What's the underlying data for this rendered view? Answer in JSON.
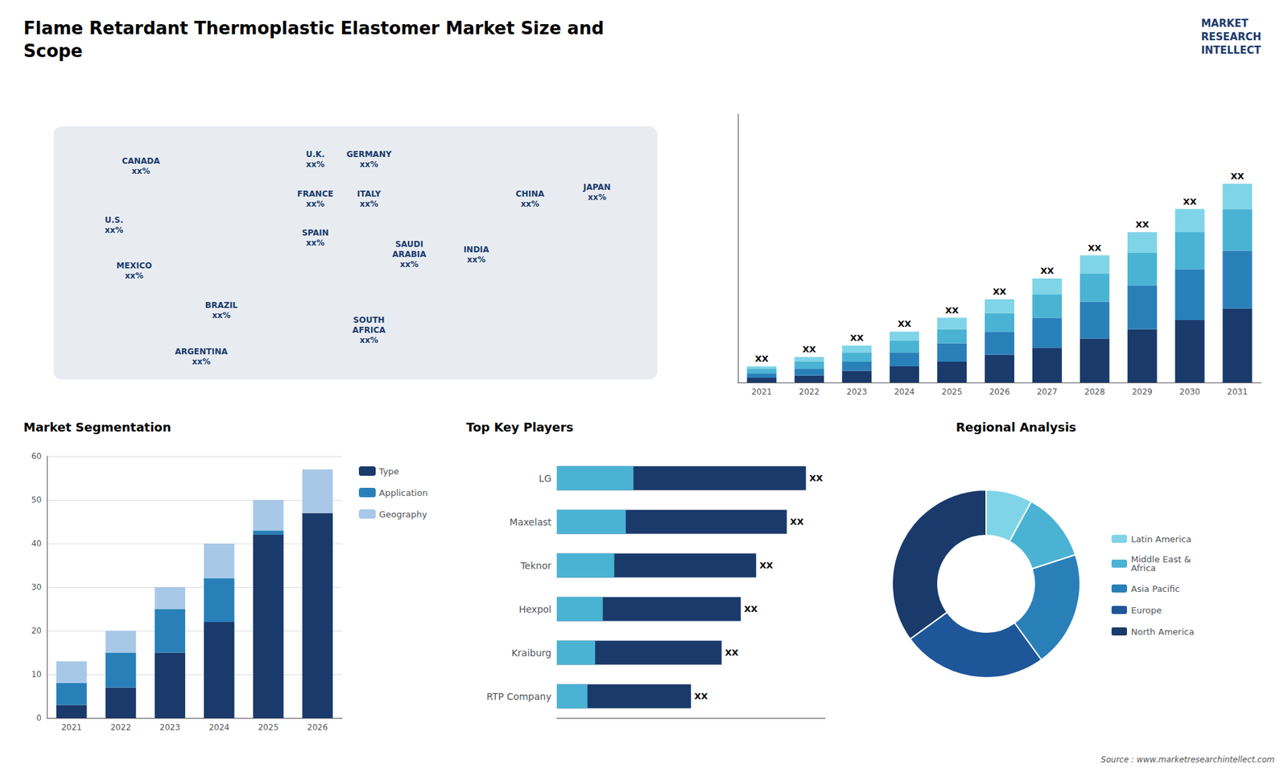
{
  "chart_data": [
    {
      "type": "bar",
      "title": "Flame Retardant Thermoplastic Elastomer Market Size and\nScope",
      "categories": [
        2021,
        2022,
        2023,
        2024,
        2025,
        2026,
        2027,
        2028,
        2029,
        2030,
        2031
      ],
      "series": [
        {
          "color": "#1a3a6b",
          "values": [
            2,
            3,
            5,
            7,
            9,
            12,
            15,
            19,
            23,
            27,
            32
          ]
        },
        {
          "color": "#2980b9",
          "values": [
            2,
            3,
            4,
            6,
            8,
            10,
            13,
            16,
            19,
            22,
            25
          ]
        },
        {
          "color": "#4ab3d4",
          "values": [
            2,
            3,
            4,
            5,
            6,
            8,
            10,
            12,
            14,
            16,
            18
          ]
        },
        {
          "color": "#7fd4e8",
          "values": [
            1,
            2,
            3,
            4,
            5,
            6,
            7,
            8,
            9,
            10,
            11
          ],
          "data_labels": true,
          "value_labels": [
            "XX",
            "XX",
            "XX",
            "XX",
            "XX",
            "XX",
            "XX",
            "XX",
            "XX",
            "XX",
            "XX"
          ]
        }
      ],
      "stacked": true,
      "ylim": [
        0,
        116.1
      ],
      "tick_labels": "x",
      "grid": false,
      "annotations": [
        "CANADA\nxx%",
        "U.S.\nxx%",
        "MEXICO\nxx%",
        "BRAZIL\nxx%",
        "ARGENTINA\nxx%",
        "U.K.\nxx%",
        "FRANCE\nxx%",
        "SPAIN\nxx%",
        "GERMANY\nxx%",
        "ITALY\nxx%",
        "SAUDI\nARABIA\nxx%",
        "SOUTH\nAFRICA\nxx%",
        "INDIA\nxx%",
        "CHINA\nxx%",
        "JAPAN\nxx%",
        "MARKET\nRESEARCH\nINTELLECT",
        "Source : www.marketresearchintellect.com"
      ]
    },
    {
      "type": "bar",
      "title": "Market Segmentation",
      "categories": [
        2021,
        2022,
        2023,
        2024,
        2025,
        2026
      ],
      "series": [
        {
          "name": "Type",
          "color": "#1a3a6b",
          "values": [
            3,
            7,
            15,
            22,
            42,
            47
          ]
        },
        {
          "name": "Application",
          "color": "#2980b9",
          "values": [
            5,
            8,
            10,
            10,
            1,
            0
          ]
        },
        {
          "name": "Geography",
          "color": "#a8c8e8",
          "values": [
            5,
            5,
            5,
            8,
            7,
            10
          ]
        }
      ],
      "stacked": true,
      "ylim": [
        0,
        60
      ],
      "yticks": [
        0,
        10,
        20,
        30,
        40,
        50,
        60
      ],
      "grid": true,
      "legend": "right"
    },
    {
      "type": "bar",
      "title": "Top Key Players",
      "orientation": "horizontal",
      "categories": [
        "LG",
        "Maxelast",
        "Teknor",
        "Hexpol",
        "Kraiburg",
        "RTP Company"
      ],
      "series": [
        {
          "color": "#1a3a6b",
          "values": [
            65,
            60,
            52,
            48,
            43,
            35
          ],
          "data_labels": true,
          "value_labels": [
            "XX",
            "XX",
            "XX",
            "XX",
            "XX",
            "XX"
          ]
        },
        {
          "color": "#4ab3d4",
          "values": [
            20,
            18,
            15,
            12,
            10,
            8
          ]
        }
      ],
      "stacked": false,
      "xlim": [
        0,
        70
      ],
      "tick_labels": "y",
      "grid": false
    },
    {
      "type": "pie",
      "title": "Regional Analysis",
      "categories": [
        "Latin America",
        "Middle East &\nAfrica",
        "Asia Pacific",
        "Europe",
        "North America"
      ],
      "values": [
        8,
        12,
        20,
        25,
        35
      ],
      "colors": [
        "#7fd4e8",
        "#4ab3d4",
        "#2980b9",
        "#1e5799",
        "#1a3a6b"
      ],
      "legend": "right"
    }
  ]
}
